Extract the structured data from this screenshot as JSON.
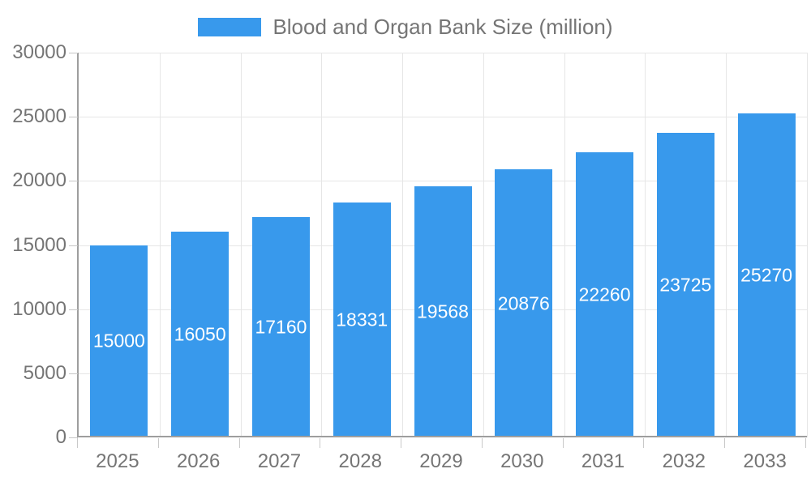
{
  "chart_data": {
    "type": "bar",
    "title": "Blood and Organ Bank Size (million)",
    "categories": [
      "2025",
      "2026",
      "2027",
      "2028",
      "2029",
      "2030",
      "2031",
      "2032",
      "2033"
    ],
    "values": [
      15000,
      16050,
      17160,
      18331,
      19568,
      20876,
      22260,
      23725,
      25270
    ],
    "xlabel": "",
    "ylabel": "",
    "ylim": [
      0,
      30000
    ],
    "y_ticks": [
      0,
      5000,
      10000,
      15000,
      20000,
      25000,
      30000
    ],
    "grid": true,
    "legend_position": "top",
    "value_labels": "inside-center",
    "colors": {
      "bar": "#3899EC",
      "axis_label": "#757575",
      "value_label": "#ffffff",
      "gridline": "#e6e6e6",
      "axis_line": "#9e9e9e",
      "background": "#ffffff"
    }
  },
  "legend": {
    "label": "Blood and Organ Bank Size (million)"
  }
}
